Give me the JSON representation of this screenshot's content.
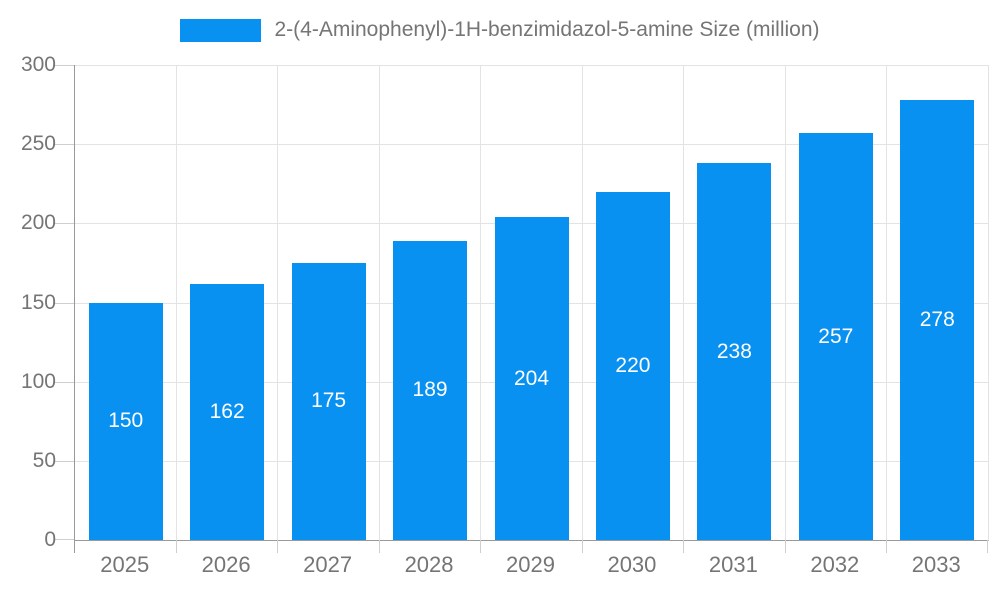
{
  "legend": {
    "label": "2-(4-Aminophenyl)-1H-benzimidazol-5-amine Size (million)"
  },
  "chart_data": {
    "type": "bar",
    "categories": [
      "2025",
      "2026",
      "2027",
      "2028",
      "2029",
      "2030",
      "2031",
      "2032",
      "2033"
    ],
    "values": [
      150,
      162,
      175,
      189,
      204,
      220,
      238,
      257,
      278
    ],
    "series_name": "2-(4-Aminophenyl)-1H-benzimidazol-5-amine Size (million)",
    "title": "",
    "xlabel": "",
    "ylabel": "",
    "ylim": [
      0,
      300
    ],
    "yticks": [
      0,
      50,
      100,
      150,
      200,
      250,
      300
    ],
    "grid": true,
    "legend_position": "top",
    "bar_labels_inside": true
  },
  "colors": {
    "bar": "#0991f2",
    "bar_label": "#ffffff",
    "grid": "#e3e3e3",
    "axis": "#999999",
    "tick_label": "#757575",
    "background": "#ffffff"
  }
}
